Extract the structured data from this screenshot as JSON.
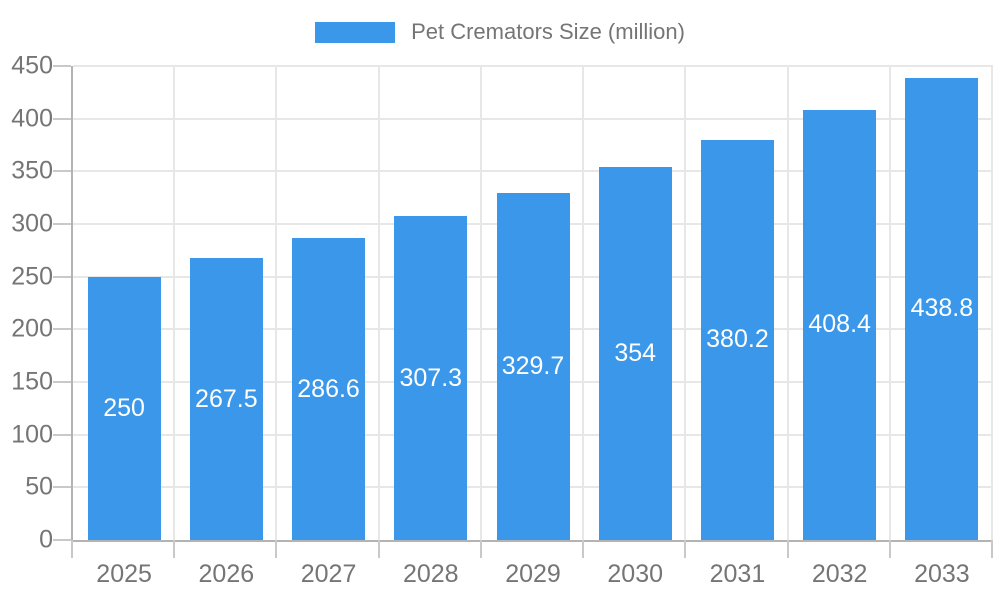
{
  "legend": {
    "series_label": "Pet Cremators Size (million)"
  },
  "colors": {
    "bar": "#3A97EA",
    "bar_label_text": "#FFFFFF",
    "axis_text": "#757575",
    "legend_text": "#757575",
    "axis_line": "#B3B3B3",
    "tick": "#C9C9C9",
    "gridline": "#E7E7E7",
    "background": "#FFFFFF"
  },
  "chart_data": {
    "type": "bar",
    "title": "",
    "series_name": "Pet Cremators Size (million)",
    "categories": [
      "2025",
      "2026",
      "2027",
      "2028",
      "2029",
      "2030",
      "2031",
      "2032",
      "2033"
    ],
    "values": [
      250,
      267.5,
      286.6,
      307.3,
      329.7,
      354,
      380.2,
      408.4,
      438.8
    ],
    "xlabel": "",
    "ylabel": "",
    "ylim": [
      0,
      450
    ],
    "ytick_step": 50,
    "yticks": [
      0,
      50,
      100,
      150,
      200,
      250,
      300,
      350,
      400,
      450
    ],
    "grid": true,
    "legend_position": "top-center",
    "value_label_position": "inside-center"
  }
}
